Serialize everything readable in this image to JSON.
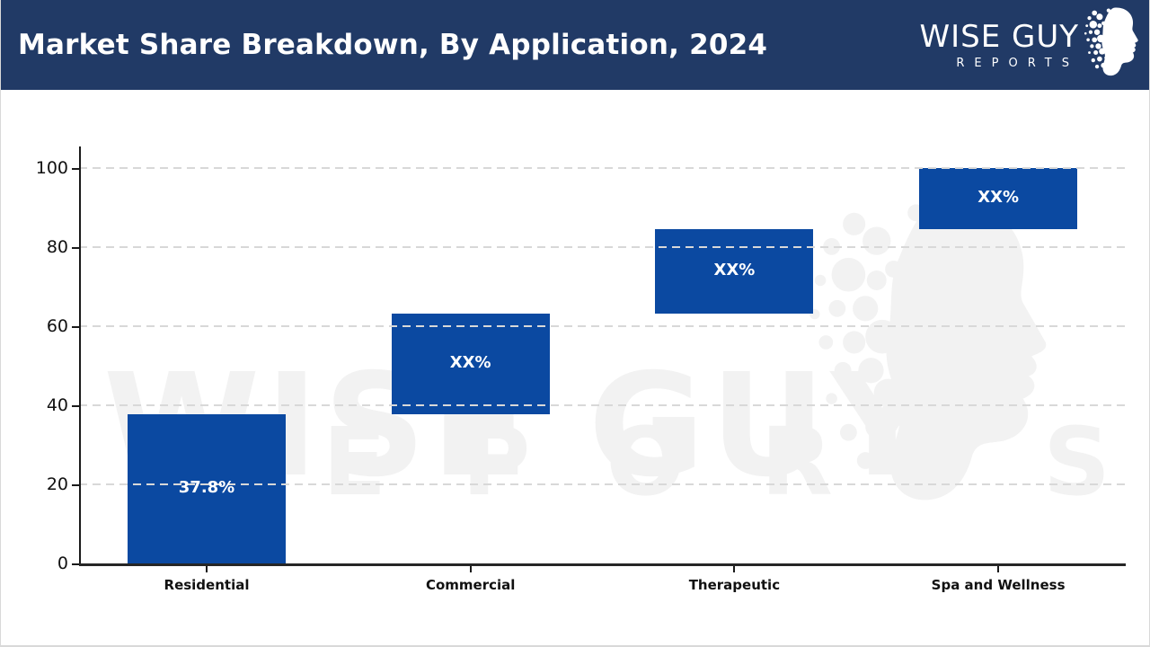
{
  "header": {
    "title": "Market Share Breakdown, By Application, 2024",
    "bg_color": "#213a66",
    "logo": {
      "line1": "WISE GUY",
      "line2": "REPORTS"
    }
  },
  "watermark": {
    "line1": "WISE GUY",
    "line2": "REPORTS"
  },
  "chart_data": {
    "type": "bar",
    "subtype": "waterfall-floating-bars",
    "title": "Market Share Breakdown, By Application, 2024",
    "categories": [
      "Residential",
      "Commercial",
      "Therapeutic",
      "Spa and Wellness"
    ],
    "bars": [
      {
        "category": "Residential",
        "start": 0,
        "end": 37.8,
        "label": "37.8%"
      },
      {
        "category": "Commercial",
        "start": 37.8,
        "end": 63.2,
        "label": "XX%"
      },
      {
        "category": "Therapeutic",
        "start": 63.2,
        "end": 84.6,
        "label": "XX%"
      },
      {
        "category": "Spa and Wellness",
        "start": 84.6,
        "end": 100,
        "label": "XX%"
      }
    ],
    "yticks": [
      0,
      20,
      40,
      60,
      80,
      100
    ],
    "ylim": [
      0,
      105
    ],
    "xlabel": "",
    "ylabel": "",
    "grid": "horizontal-dashed",
    "legend": "none",
    "bar_color": "#0b49a1",
    "grid_color": "#d8d8d8",
    "axis_color": "#1a1a1a"
  }
}
